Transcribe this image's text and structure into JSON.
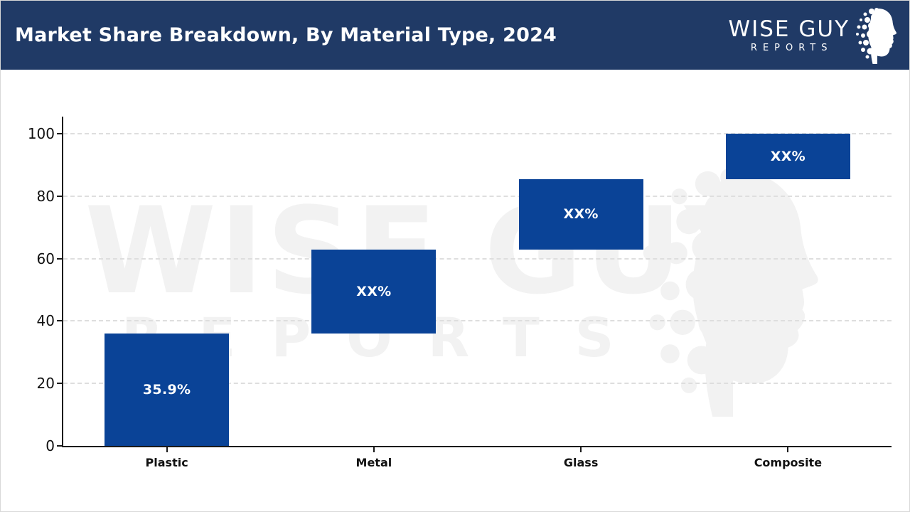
{
  "header": {
    "title": "Market Share Breakdown, By Material Type, 2024",
    "logo": {
      "line1": "WISE GUY",
      "line2": "REPORTS"
    }
  },
  "watermark": {
    "line1": "WISE GUY",
    "line2": "REPORTS"
  },
  "chart_data": {
    "type": "bar",
    "subtype": "waterfall",
    "title": "Market Share Breakdown, By Material Type, 2024",
    "categories": [
      "Plastic",
      "Metal",
      "Glass",
      "Composite"
    ],
    "segments": [
      {
        "category": "Plastic",
        "start": 0,
        "end": 35.9,
        "label": "35.9%"
      },
      {
        "category": "Metal",
        "start": 35.9,
        "end": 62.9,
        "label": "XX%"
      },
      {
        "category": "Glass",
        "start": 62.9,
        "end": 85.4,
        "label": "XX%"
      },
      {
        "category": "Composite",
        "start": 85.4,
        "end": 100,
        "label": "XX%"
      }
    ],
    "yticks": [
      0,
      20,
      40,
      60,
      80,
      100
    ],
    "ylim": [
      0,
      105
    ],
    "xlabel": "",
    "ylabel": "",
    "grid": "horizontal-dashed",
    "legend": "none",
    "bar_color": "#0a4397",
    "label_color": "#ffffff"
  },
  "colors": {
    "header_bg": "#203a66",
    "bar": "#0a4397",
    "grid": "#dedede",
    "axis": "#1a1a1a",
    "watermark": "#f2f2f2"
  }
}
